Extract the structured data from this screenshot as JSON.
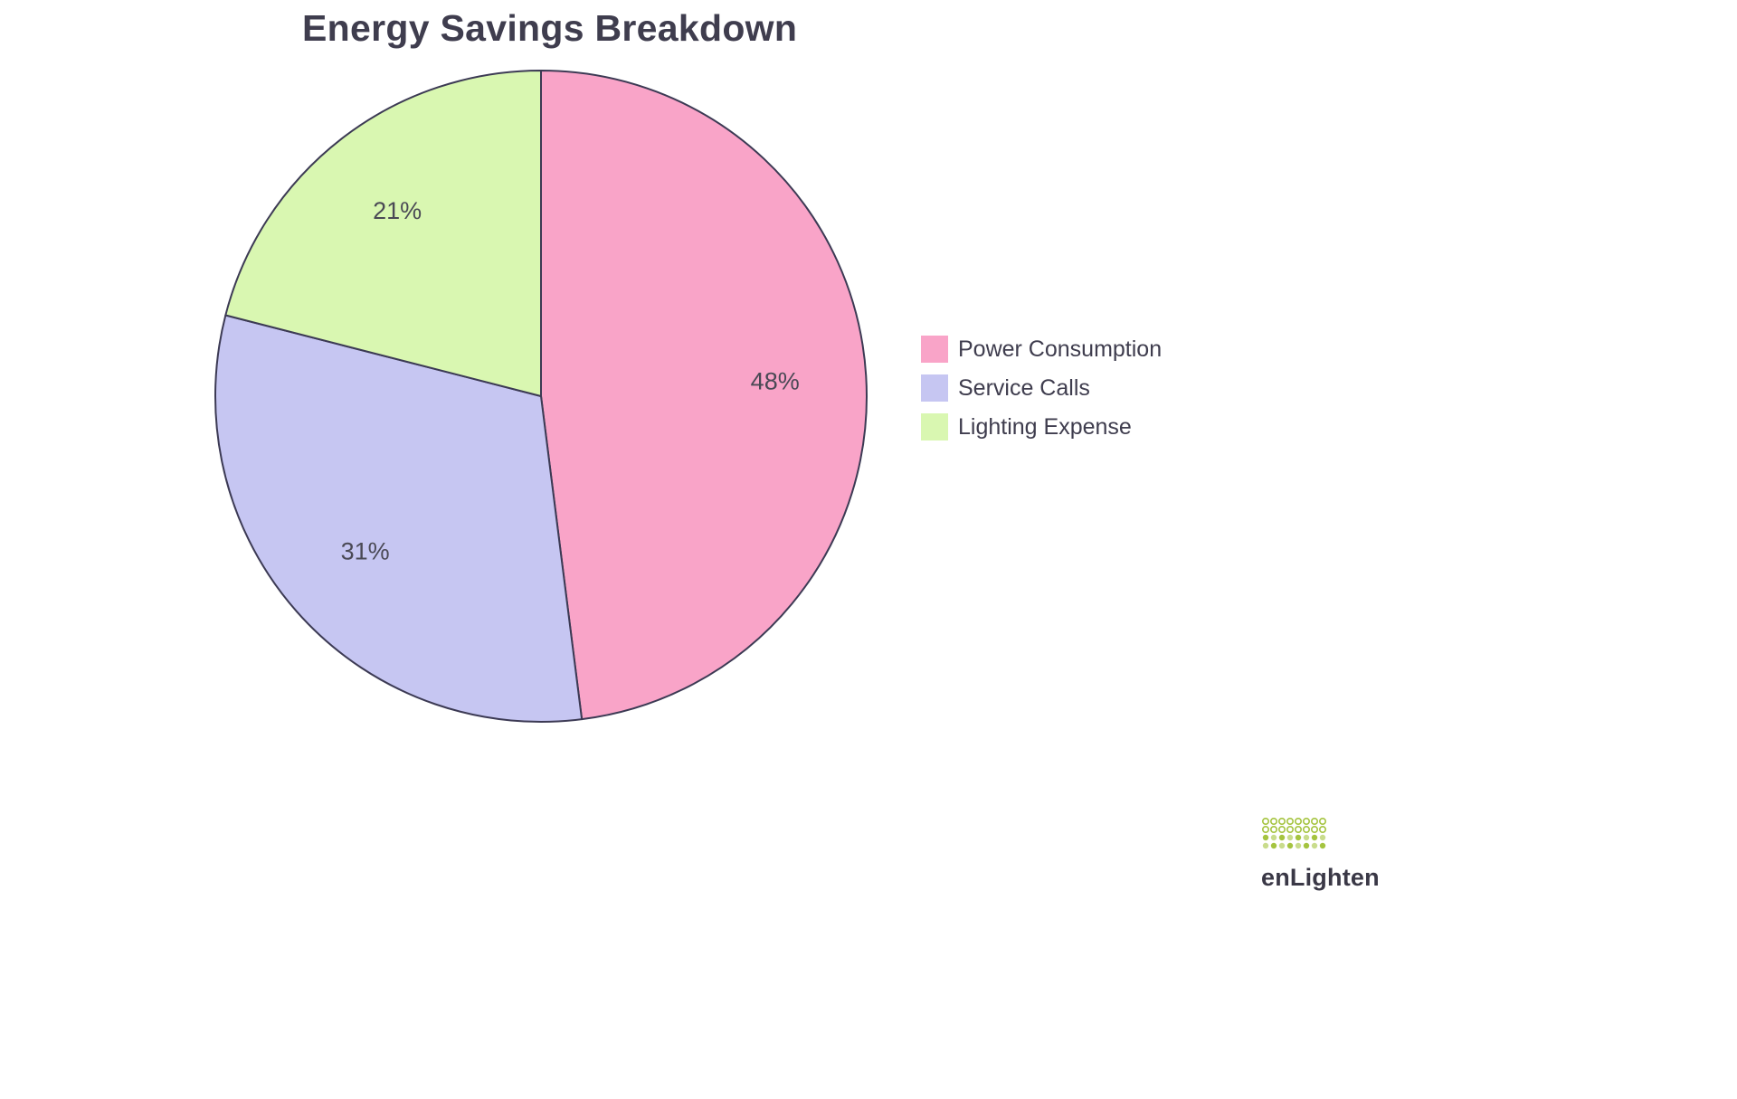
{
  "chart_data": {
    "type": "pie",
    "title": "Energy Savings Breakdown",
    "labels": [
      "Power Consumption",
      "Service Calls",
      "Lighting Expense"
    ],
    "values": [
      48,
      31,
      21
    ],
    "value_labels": [
      "48%",
      "31%",
      "21%"
    ],
    "colors": [
      "#F9A4C8",
      "#C6C6F2",
      "#D9F7B1"
    ],
    "slice_border_color": "#3C3A54",
    "start_angle_deg": -90,
    "direction": "clockwise",
    "legend_position": "right",
    "background": "#FFFFFF"
  },
  "legend": {
    "items": [
      {
        "label": "Power Consumption",
        "color": "#F9A4C8"
      },
      {
        "label": "Service Calls",
        "color": "#C6C6F2"
      },
      {
        "label": "Lighting Expense",
        "color": "#D9F7B1"
      }
    ]
  },
  "logo": {
    "text": "enLighten",
    "dot_color": "#A5C440",
    "dot_color_light": "#C9DC8C",
    "text_color": "#3A3846"
  }
}
